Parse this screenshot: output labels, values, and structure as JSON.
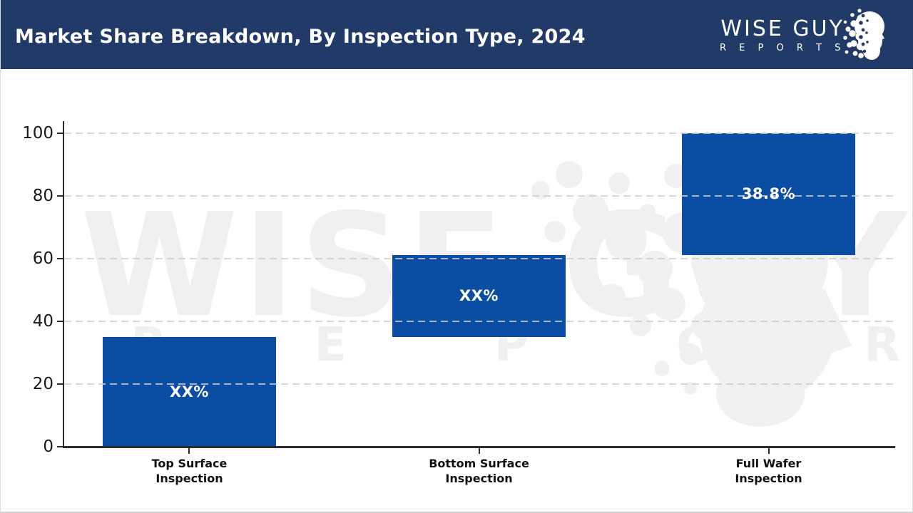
{
  "header": {
    "title": "Market Share Breakdown, By Inspection Type, 2024",
    "logo": {
      "wordmark": "WISE GUY",
      "subtext": "R E P O R T S"
    }
  },
  "watermark": {
    "line1": "WISE GUY",
    "line2": "R E P O R T S"
  },
  "colors": {
    "header_bg": "#223A68",
    "bar_fill": "#0B4DA2",
    "bar_label_text": "#ffffff",
    "axis": "#2b2b2b",
    "tick_label": "#1a1a1a",
    "gridline": "#d9d9d9",
    "watermark": "#f0f0f2",
    "background": "#ffffff"
  },
  "chart_data": {
    "type": "bar",
    "variant": "waterfall-segments",
    "title": "Market Share Breakdown, By Inspection Type, 2024",
    "xlabel": "",
    "ylabel": "",
    "ylim": [
      0,
      100
    ],
    "yticks": [
      "0",
      "20",
      "40",
      "60",
      "80",
      "100"
    ],
    "grid": "horizontal dashed, drawn over bars",
    "legend": "none",
    "categories": [
      "Top Surface Inspection",
      "Bottom Surface Inspection",
      "Full Wafer Inspection"
    ],
    "x_labels": [
      {
        "line1": "Top Surface",
        "line2": "Inspection"
      },
      {
        "line1": "Bottom Surface",
        "line2": "Inspection"
      },
      {
        "line1": "Full Wafer",
        "line2": "Inspection"
      }
    ],
    "bars": [
      {
        "category": "Top Surface Inspection",
        "display_label": "XX%",
        "start": 0,
        "end": 35.0,
        "estimated_value": 35.0,
        "value_masked": true
      },
      {
        "category": "Bottom Surface Inspection",
        "display_label": "XX%",
        "start": 35.0,
        "end": 61.2,
        "estimated_value": 26.2,
        "value_masked": true
      },
      {
        "category": "Full Wafer Inspection",
        "display_label": "38.8%",
        "start": 61.2,
        "end": 100.0,
        "estimated_value": 38.8,
        "value_masked": false
      }
    ]
  }
}
